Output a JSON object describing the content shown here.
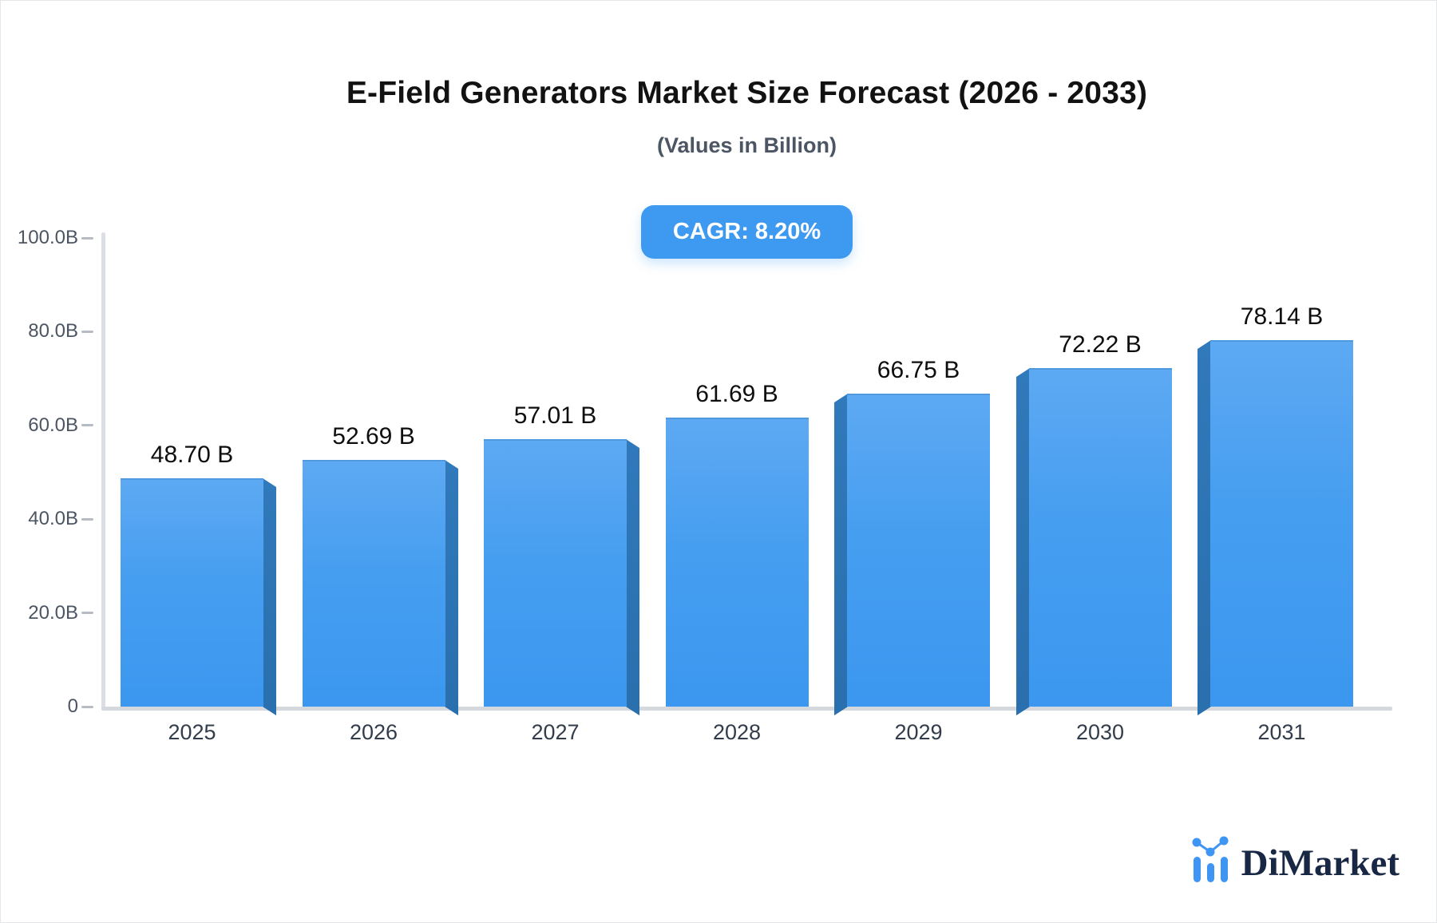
{
  "title": "E-Field Generators Market Size Forecast (2026 - 2033)",
  "subtitle": "(Values in Billion)",
  "badge": {
    "label": "CAGR: 8.20%"
  },
  "logo": {
    "text": "DiMarket",
    "icon": "bar-line-chart-icon"
  },
  "colors": {
    "accent_blue": "#3d9af0",
    "bar_face_top": "#5da9f3",
    "bar_face_bottom": "#3b97ef",
    "bar_side": "#2d76b6",
    "axis_line": "#dbdee3",
    "baseline": "#d5d8dd",
    "tick_mark": "#b6bcc4",
    "title_text": "#121212",
    "subtitle_text": "#4b5563",
    "y_label_text": "#4c5562",
    "x_label_text": "#323c4b",
    "value_text": "#0e0e0e",
    "logo_navy": "#182743"
  },
  "chart_data": {
    "type": "bar",
    "title": "E-Field Generators Market Size Forecast (2026 - 2033)",
    "subtitle": "(Values in Billion)",
    "annotation": "CAGR: 8.20%",
    "categories": [
      "2025",
      "2026",
      "2027",
      "2028",
      "2029",
      "2030",
      "2031"
    ],
    "values": [
      48.7,
      52.69,
      57.01,
      61.69,
      66.75,
      72.22,
      78.14
    ],
    "value_labels": [
      "48.70 B",
      "52.69 B",
      "57.01 B",
      "61.69 B",
      "66.75 B",
      "72.22 B",
      "78.14 B"
    ],
    "xlabel": "",
    "ylabel": "",
    "ylim": [
      0,
      100
    ],
    "yticks": {
      "labels": [
        "100.0B",
        "80.0B",
        "60.0B",
        "40.0B",
        "20.0B",
        "0"
      ],
      "values": [
        100,
        80,
        60,
        40,
        20,
        0
      ]
    },
    "grid": false,
    "legend_position": "none",
    "bar_style": "3d",
    "bar_3d_sides": [
      "right",
      "right",
      "right",
      "none",
      "left",
      "left",
      "left"
    ]
  }
}
